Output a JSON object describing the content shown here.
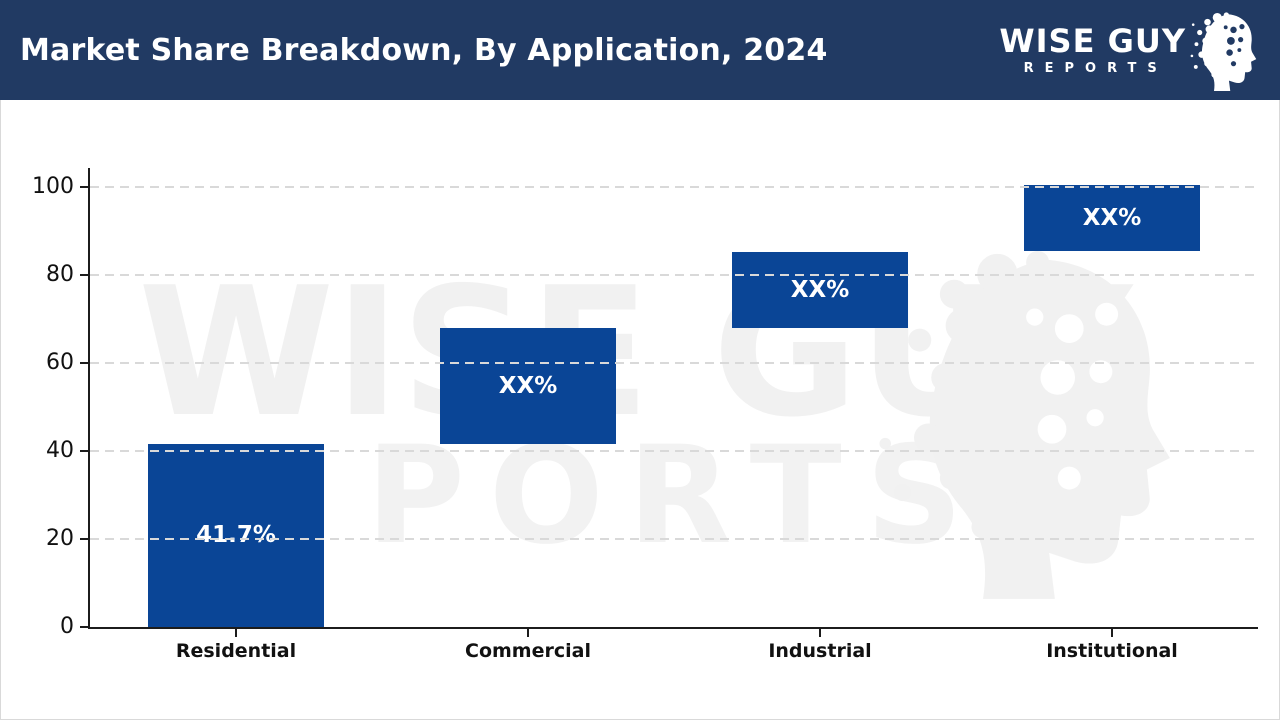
{
  "header": {
    "title": "Market Share Breakdown, By Application, 2024",
    "bg_color": "#213A63",
    "logo": {
      "line1": "WISE GUY",
      "line2": "REPORTS"
    }
  },
  "watermark": {
    "line1": "WISE GUY",
    "line2": "PORTS"
  },
  "chart_data": {
    "type": "bar",
    "subtype": "waterfall",
    "title": "Market Share Breakdown, By Application, 2024",
    "categories": [
      "Residential",
      "Commercial",
      "Industrial",
      "Institutional"
    ],
    "segments": [
      {
        "start": 0,
        "end": 41.7,
        "label": "41.7%"
      },
      {
        "start": 41.7,
        "end": 68.0,
        "label": "XX%"
      },
      {
        "start": 68.0,
        "end": 85.3,
        "label": "XX%"
      },
      {
        "start": 85.5,
        "end": 100.5,
        "label": "XX%"
      }
    ],
    "yticks": [
      0,
      20,
      40,
      60,
      80,
      100
    ],
    "ylim": [
      0,
      105
    ],
    "xlabel": "",
    "ylabel": "",
    "grid": "horizontal-dashed",
    "gridline_color": "#d9d9d9",
    "bar_color": "#0A4596",
    "bar_label_color": "#ffffff",
    "axis_color": "#1c1c1c",
    "tick_label_color": "#111111"
  }
}
